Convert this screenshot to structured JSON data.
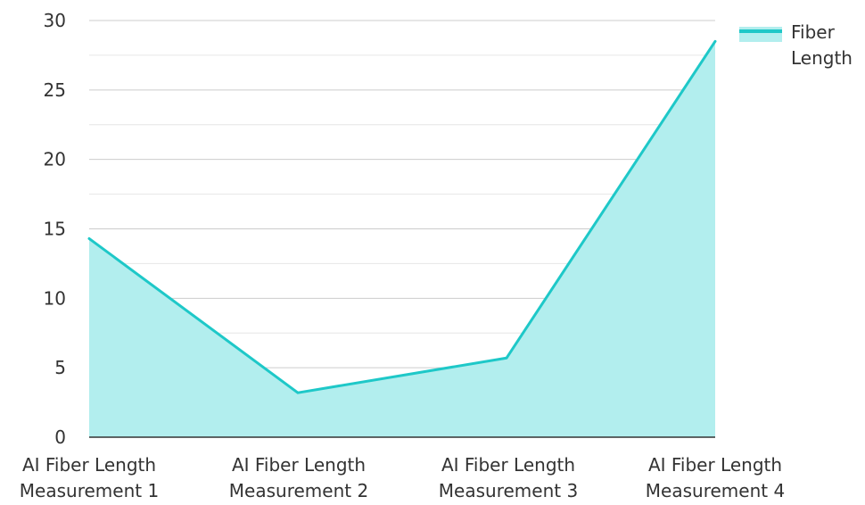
{
  "chart_data": {
    "type": "area",
    "categories": [
      [
        "AI Fiber Length",
        "Measurement 1"
      ],
      [
        "AI Fiber Length",
        "Measurement 2"
      ],
      [
        "AI Fiber Length",
        "Measurement 3"
      ],
      [
        "AI Fiber Length",
        "Measurement 4"
      ]
    ],
    "series": [
      {
        "name": "Fiber Length",
        "values": [
          14.3,
          3.2,
          5.7,
          28.5
        ],
        "line_color": "#1ec8c8",
        "fill_color": "#b2eeee"
      }
    ],
    "y_ticks": [
      0,
      5,
      10,
      15,
      20,
      25,
      30
    ],
    "ylim": [
      0,
      30
    ],
    "grid": true,
    "legend": {
      "position": "top-right",
      "label_lines": [
        "Fiber",
        "Length"
      ]
    },
    "colors": {
      "gridline": "#cccccc",
      "minor_gridline": "#e6e6e6",
      "axis": "#333333",
      "text": "#333333"
    }
  }
}
